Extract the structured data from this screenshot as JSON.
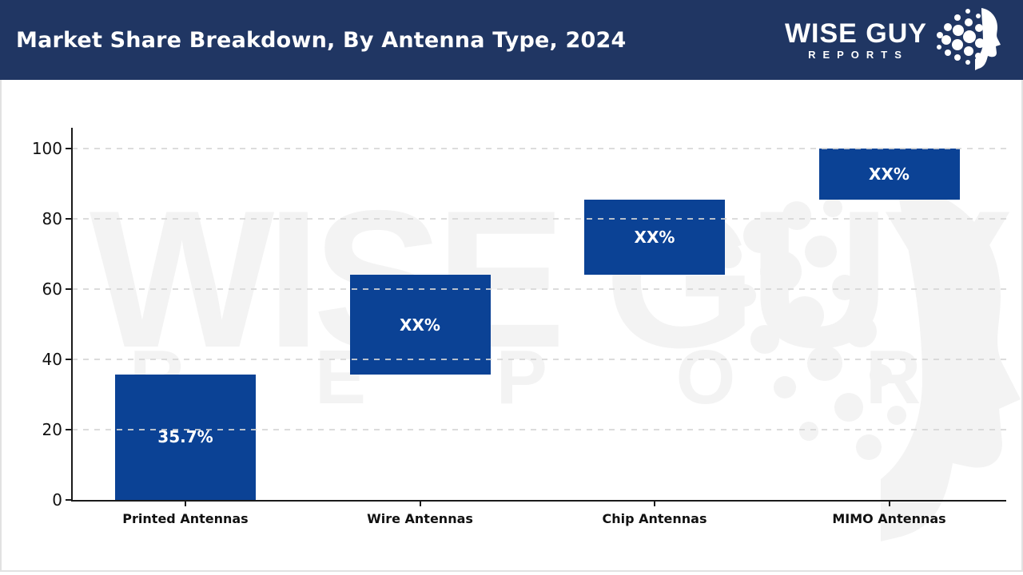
{
  "header": {
    "title": "Market Share Breakdown, By Antenna Type, 2024",
    "logo": {
      "line1": "WISE GUY",
      "line2": "REPORTS",
      "icon": "dot-head-profile"
    }
  },
  "watermark": {
    "line1": "WISE GUY",
    "line2": "R E P O R T S",
    "icon": "dot-head-profile"
  },
  "chart_data": {
    "type": "bar",
    "subtype": "waterfall",
    "title": "Market Share Breakdown, By Antenna Type, 2024",
    "xlabel": "",
    "ylabel": "",
    "categories": [
      "Printed Antennas",
      "Wire Antennas",
      "Chip Antennas",
      "MIMO Antennas"
    ],
    "segments": [
      {
        "category": "Printed Antennas",
        "start": 0,
        "end": 35.7,
        "label": "35.7%"
      },
      {
        "category": "Wire Antennas",
        "start": 35.7,
        "end": 64.0,
        "label": "XX%"
      },
      {
        "category": "Chip Antennas",
        "start": 64.0,
        "end": 85.5,
        "label": "XX%"
      },
      {
        "category": "MIMO Antennas",
        "start": 85.5,
        "end": 100,
        "label": "XX%"
      }
    ],
    "y_ticks": [
      0,
      20,
      40,
      60,
      80,
      100
    ],
    "ylim": [
      0,
      106
    ],
    "grid": "horizontal-dashed",
    "legend": "none",
    "bar_color": "#0b4295",
    "bar_label_color": "#ffffff"
  },
  "colors": {
    "header_bg": "#203663",
    "bar": "#0b4295",
    "axis": "#1a1a1a",
    "gridline": "#d6d6d6",
    "watermark": "#f3f3f3",
    "border": "#e2e2e2"
  }
}
